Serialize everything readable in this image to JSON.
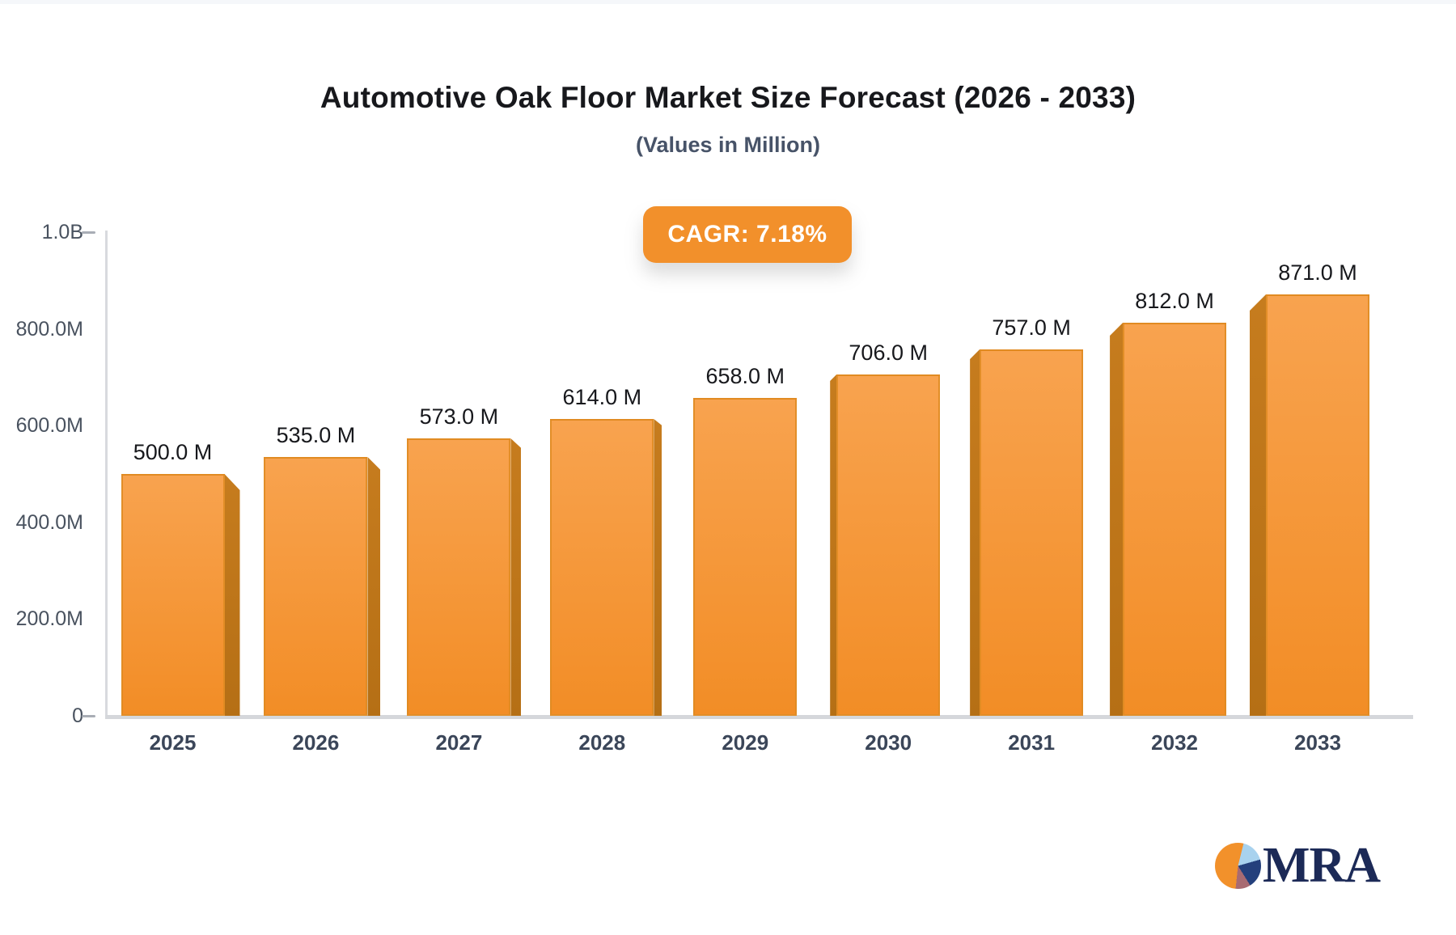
{
  "header": {
    "title": "Automotive Oak Floor Market Size Forecast (2026 - 2033)",
    "subtitle": "(Values in Million)"
  },
  "badge": {
    "label": "CAGR: 7.18%",
    "background": "#F2902B",
    "text_color": "#FFFFFF"
  },
  "chart_data": {
    "type": "bar",
    "title": "Automotive Oak Floor Market Size Forecast (2026 - 2033)",
    "subtitle": "(Values in Million)",
    "unit": "Million",
    "cagr_label": "CAGR: 7.18%",
    "categories": [
      "2025",
      "2026",
      "2027",
      "2028",
      "2029",
      "2030",
      "2031",
      "2032",
      "2033"
    ],
    "values": [
      500.0,
      535.0,
      573.0,
      614.0,
      658.0,
      706.0,
      757.0,
      812.0,
      871.0
    ],
    "bar_labels": [
      "500.0 M",
      "535.0 M",
      "573.0 M",
      "614.0 M",
      "658.0 M",
      "706.0 M",
      "757.0 M",
      "812.0 M",
      "871.0 M"
    ],
    "ylim": [
      0,
      1000
    ],
    "yticks": [
      {
        "label": "1.0B",
        "value": 1000,
        "dash": true
      },
      {
        "label": "800.0M",
        "value": 800,
        "dash": false
      },
      {
        "label": "600.0M",
        "value": 600,
        "dash": false
      },
      {
        "label": "400.0M",
        "value": 400,
        "dash": false
      },
      {
        "label": "200.0M",
        "value": 200,
        "dash": false
      },
      {
        "label": "0",
        "value": 0,
        "dash": true
      }
    ],
    "grid": false,
    "legend": false,
    "style_3d": true,
    "colors": {
      "face_top": "#F8A34F",
      "face_bottom": "#F28D26",
      "side": "#BE7519",
      "face_border": "#DE8B22",
      "axis": "#D7D9DD",
      "tick_text": "#49525F",
      "category_text": "#3B4659",
      "value_text": "#17181C",
      "badge": "#F2902B"
    }
  },
  "logo": {
    "text": "MRA",
    "pie_colors": {
      "orange": "#F2912B",
      "light_blue": "#A8D2EE",
      "navy": "#24407C",
      "maroon": "#A86B72"
    }
  }
}
